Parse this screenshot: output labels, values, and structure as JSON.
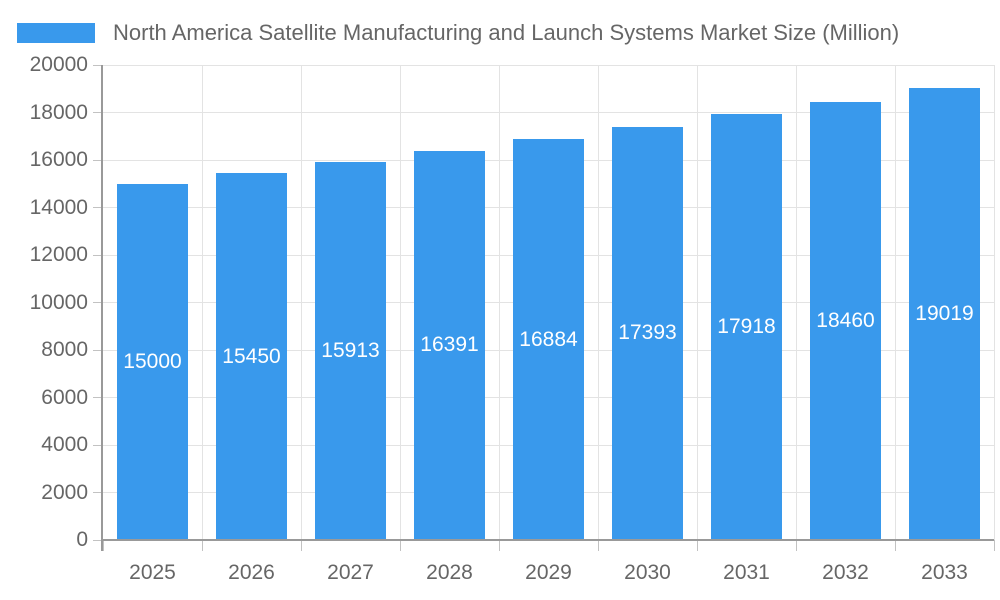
{
  "chart_data": {
    "type": "bar",
    "title": "North America Satellite Manufacturing and Launch Systems Market Size (Million)",
    "xlabel": "",
    "ylabel": "",
    "categories": [
      "2025",
      "2026",
      "2027",
      "2028",
      "2029",
      "2030",
      "2031",
      "2032",
      "2033"
    ],
    "values": [
      15000,
      15450,
      15913,
      16391,
      16884,
      17393,
      17918,
      18460,
      19019
    ],
    "bar_labels": [
      "15000",
      "15450",
      "15913",
      "16391",
      "16884",
      "17393",
      "17918",
      "18460",
      "19019"
    ],
    "ylim": [
      0,
      20000
    ],
    "ytick_step": 2000,
    "y_ticks": [
      0,
      2000,
      4000,
      6000,
      8000,
      10000,
      12000,
      14000,
      16000,
      18000,
      20000
    ],
    "grid": true,
    "legend_position": "top",
    "colors": {
      "bar": "#3999EC",
      "grid": "#E3E3E3",
      "tick_mark": "#C2C2C2",
      "axis": "#999999",
      "tick_text": "#666666",
      "bar_label_text": "#FFFFFF",
      "background": "#FFFFFF"
    }
  }
}
